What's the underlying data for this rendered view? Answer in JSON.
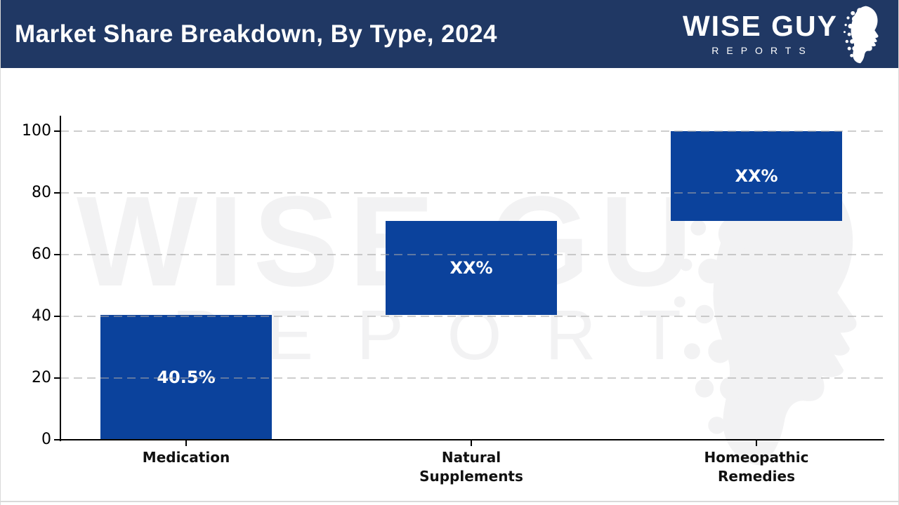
{
  "header": {
    "title": "Market Share Breakdown, By Type, 2024",
    "background": "#203864",
    "logo": {
      "line1": "WISE GUY",
      "line2": "REPORTS"
    }
  },
  "watermark": {
    "line1": "WISE GU",
    "line2": "REPORTS"
  },
  "chart_data": {
    "type": "bar",
    "subtype": "floating-segment-waterfall",
    "title": "Market Share Breakdown, By Type, 2024",
    "categories": [
      "Medication",
      "Natural Supplements",
      "Homeopathic Remedies"
    ],
    "category_lines": [
      [
        "Medication"
      ],
      [
        "Natural",
        "Supplements"
      ],
      [
        "Homeopathic",
        "Remedies"
      ]
    ],
    "series": [
      {
        "name": "Medication",
        "start": 0,
        "end": 40.5,
        "label": "40.5%"
      },
      {
        "name": "Natural Supplements",
        "start": 40.5,
        "end": 71,
        "label": "XX%"
      },
      {
        "name": "Homeopathic Remedies",
        "start": 71,
        "end": 100,
        "label": "XX%"
      }
    ],
    "bar_color": "#0b429c",
    "bar_label_color": "#ffffff",
    "yticks": [
      0,
      20,
      40,
      60,
      80,
      100
    ],
    "ylim": [
      0,
      105
    ],
    "xlabel": "",
    "ylabel": "",
    "grid": {
      "axis": "y",
      "style": "dashed",
      "above_bars": true
    },
    "legend": "none",
    "axis_color": "#000000"
  }
}
